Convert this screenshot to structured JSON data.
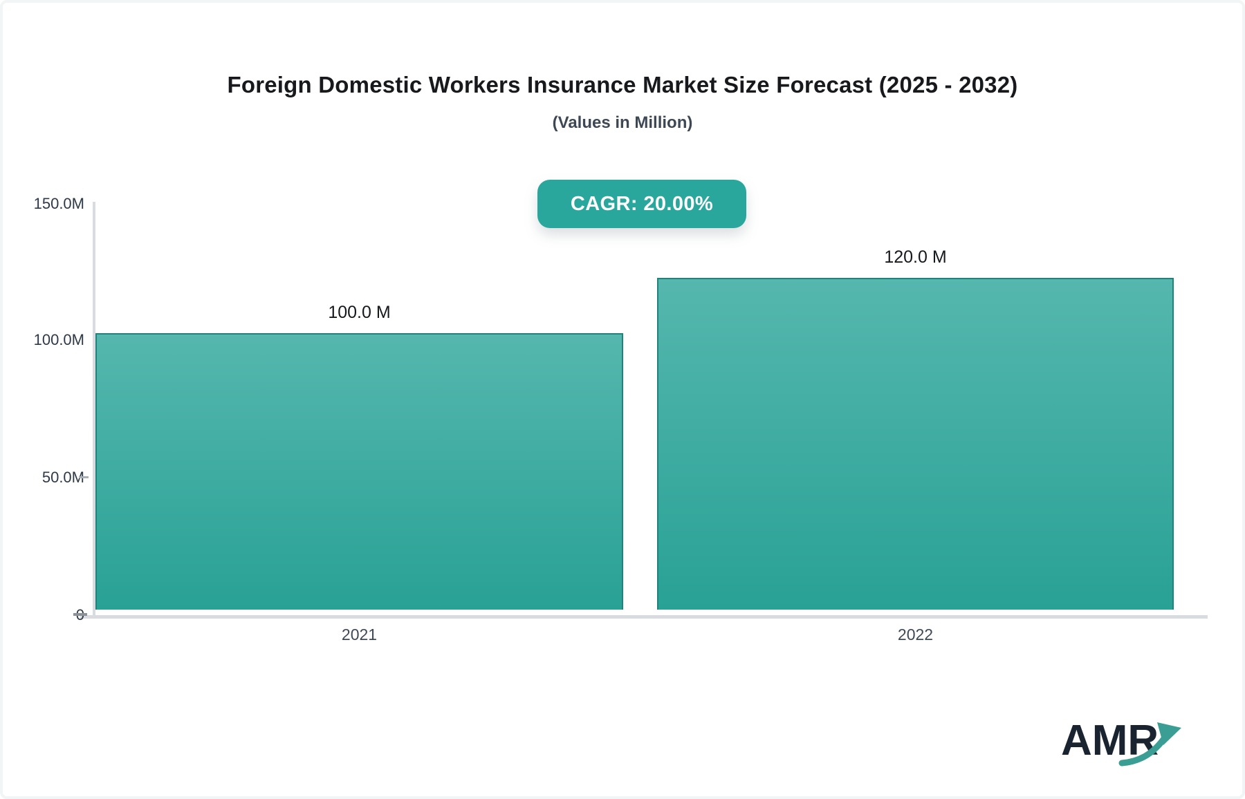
{
  "header": {
    "title": "Foreign Domestic Workers Insurance Market Size Forecast (2025 - 2032)",
    "subtitle": "(Values in Million)",
    "cagr_badge": "CAGR: 20.00%"
  },
  "chart_data": {
    "type": "bar",
    "title": "Foreign Domestic Workers Insurance Market Size Forecast (2025 - 2032)",
    "subtitle": "(Values in Million)",
    "unit": "Million",
    "cagr_percent": 20.0,
    "categories": [
      "2021",
      "2022"
    ],
    "values": [
      100.0,
      120.0
    ],
    "value_labels": [
      "100.0 M",
      "120.0 M"
    ],
    "ylim": [
      0,
      150
    ],
    "ytick_labels": [
      "150.0M",
      "100.0M",
      "50.0M",
      "0"
    ],
    "grid": false,
    "legend": false,
    "colors": {
      "bar_gradient_top": "#55b7ae",
      "bar_gradient_bottom": "#29a195",
      "bar_border": "#20837b",
      "badge_bg": "#2aa79c",
      "axis_line": "#d8dbdf",
      "value_text": "#15181c",
      "tick_text": "#2e3947"
    }
  },
  "branding": {
    "logo_text": "AMR",
    "logo_text_color": "#1a2430",
    "logo_arrow_color": "#3a9e94"
  }
}
